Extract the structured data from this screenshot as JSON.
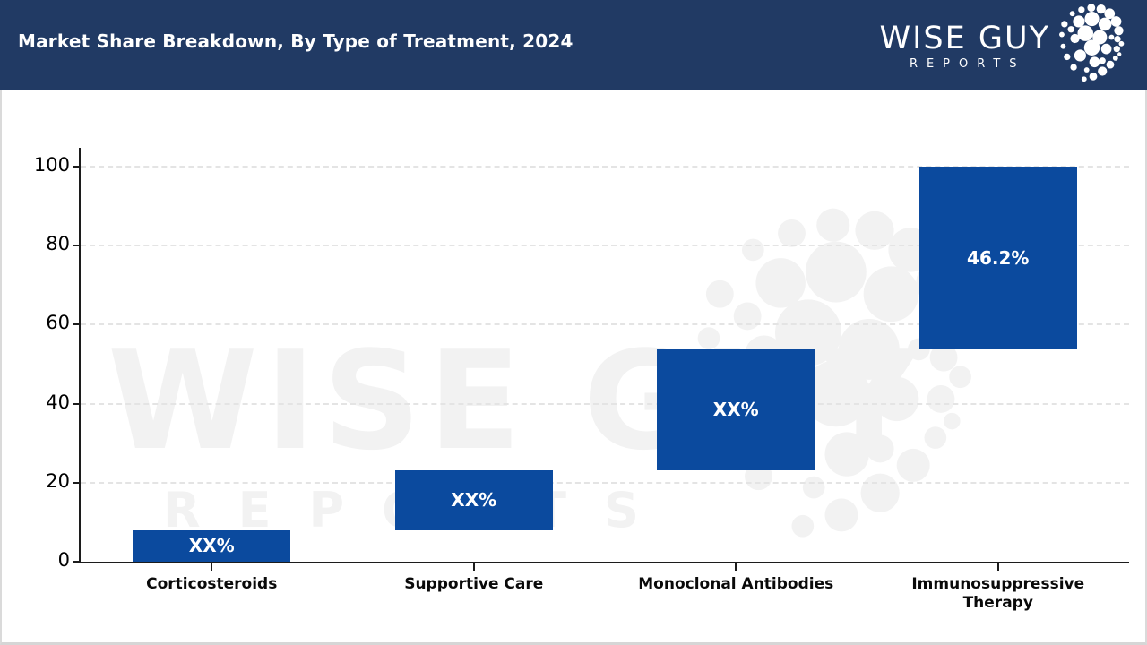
{
  "header": {
    "title": "Market Share Breakdown, By Type of Treatment, 2024",
    "logo_line1": "WISE GUY",
    "logo_line2": "REPORTS"
  },
  "watermark": {
    "line1": "WISE GUY",
    "line2": "REPORTS"
  },
  "colors": {
    "header_bg": "#213a64",
    "header_text": "#ffffff",
    "bar_blue": "#0b4a9e",
    "axis": "#1c1c1c",
    "grid": "#e4e4e4",
    "watermark": "#f2f2f2",
    "bar_label_text": "#ffffff"
  },
  "chart_data": {
    "type": "bar",
    "subtype": "waterfall",
    "title": "Market Share Breakdown, By Type of Treatment, 2024",
    "categories": [
      "Corticosteroids",
      "Supportive Care",
      "Monoclonal Antibodies",
      "Immunosuppressive Therapy"
    ],
    "segments": [
      {
        "category": "Corticosteroids",
        "start": 0,
        "end": 8,
        "label": "XX%"
      },
      {
        "category": "Supportive Care",
        "start": 8,
        "end": 23.2,
        "label": "XX%"
      },
      {
        "category": "Monoclonal Antibodies",
        "start": 23.2,
        "end": 53.8,
        "label": "XX%"
      },
      {
        "category": "Immunosuppressive Therapy",
        "start": 53.8,
        "end": 100,
        "label": "46.2%"
      }
    ],
    "xlabel": "",
    "ylabel": "",
    "ylim": [
      0,
      100
    ],
    "yticks": [
      0,
      20,
      40,
      60,
      80,
      100
    ],
    "grid": "horizontal-dashed",
    "legend": "none",
    "bar_color": "#0b4a9e"
  }
}
